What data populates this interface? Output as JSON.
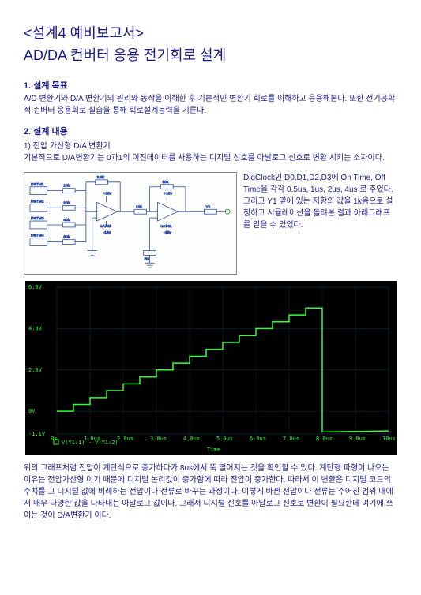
{
  "header": {
    "bracket_title": "<설계4 예비보고서>",
    "main_title": "AD/DA 컨버터 응용 전기회로 설계"
  },
  "section1": {
    "head": "1. 설계 목표",
    "body": "A/D 변환기와 D/A 변환기의 원리와 동작을 이해한 후 기본적인 변환기 회로를 이해하고 응용해본다. 또한 전기공학적 컨버터 응용회로 실습을 통해 회로설계능력을 기른다."
  },
  "section2": {
    "head": "2. 설계 내용",
    "sub1": " 1) 전압 가산형 D/A 변환기",
    "body1": "기본적으로 D/A변환기는 0과1의 이진데이터를 사용하는 디지털 신호를 아날로그 신호로 변환 시키는 소자이다."
  },
  "circuit": {
    "labels": {
      "dstm1": "DSTM1",
      "dstm2": "DSTM2",
      "dstm3": "DSTM3",
      "dstm4": "DSTM4",
      "off": "OFFTIME",
      "on": "ONTIME",
      "r5": "R5",
      "r6": "R6",
      "r7": "R7",
      "r8": "R8",
      "r9": "R9",
      "r12": "R12",
      "u1": "uA741",
      "u2": "uA741",
      "y1": "Y1",
      "v15p": "+15v",
      "v15n": "-15v",
      "rv10k": "10k",
      "rv39k": "3.9k",
      "rv20k": "20k",
      "rv40k": "40k",
      "rv80k": "80k"
    },
    "caption": "DigClock인 D0,D1,D2,D3에 On Time, Off Time을 각각 0.5us, 1us, 2us, 4us 로 주었다. 그리고 Y1 옆에 있는 저항의 값을 1k옴으로 설정하고 시뮬레이션을 돌려본 결과 아래그래프를 얻을 수 있었다."
  },
  "chart": {
    "type": "line",
    "background_color": "#000000",
    "grid_color": "#003838",
    "trace_color": "#33ff33",
    "axis_text_color": "#33ff33",
    "ylim": [
      -1.1,
      6.0
    ],
    "ytick_labels": [
      "-1.1V",
      "0V",
      "2.0V",
      "4.0V",
      "6.0V"
    ],
    "ytick_positions": [
      -1.1,
      0,
      2.0,
      4.0,
      6.0
    ],
    "xlim": [
      0,
      10
    ],
    "xtick_labels": [
      "0s",
      "1.0us",
      "2.0us",
      "3.0us",
      "4.0us",
      "5.0us",
      "6.0us",
      "7.0us",
      "8.0us",
      "9.0us",
      "10us"
    ],
    "footer": "V(Y1:1) - V(Y1:2)",
    "footer2": "Time",
    "data": {
      "x": [
        0,
        0.5,
        0.5,
        1,
        1,
        1.5,
        1.5,
        2,
        2,
        2.5,
        2.5,
        3,
        3,
        3.5,
        3.5,
        4,
        4,
        4.5,
        4.5,
        5,
        5,
        5.5,
        5.5,
        6,
        6,
        6.5,
        6.5,
        7,
        7,
        7.5,
        7.5,
        8,
        8,
        10
      ],
      "y": [
        0,
        0,
        0.33,
        0.33,
        0.66,
        0.66,
        1.0,
        1.0,
        1.33,
        1.33,
        1.66,
        1.66,
        2.0,
        2.0,
        2.33,
        2.33,
        2.66,
        2.66,
        3.0,
        3.0,
        3.33,
        3.33,
        3.66,
        3.66,
        4.0,
        4.0,
        4.33,
        4.33,
        4.66,
        4.66,
        5.0,
        5.0,
        -1.0,
        -0.95
      ]
    }
  },
  "end": {
    "body": "위의 그래프처럼 전압이 계단식으로 증가하다가 8us에서 뚝 떨어지는 것을 확인할 수 있다. 계단형 파형이 나오는 이유는 전압가산형 이기 때문에 디지털 논리값이 증가함에 따라 전압이 증가한다. 따라서 이 변환은 디지털 코드의 수치를 그 디지털 값에 비례하는 전압이나 전류로 바꾸는 과정이다. 이렇게 바뀐 전압이나 전류는 주어진 범위 내에서 매우 다양한 값을 나타내는 아날로그 값이다. 그래서 디지털 신호를 아날로그 신호로 변환이 필요한데 여기에 쓰이는 것이 D/A변환기 이다."
  }
}
